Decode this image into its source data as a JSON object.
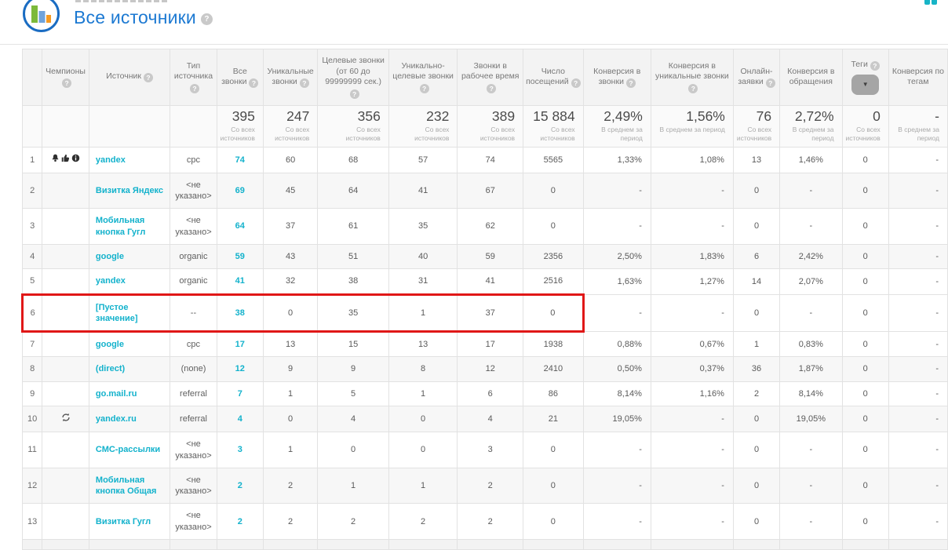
{
  "page": {
    "title": "Все источники"
  },
  "icons": {
    "help_glyph": "?",
    "dropdown_glyph": "▼",
    "logo": "bar-chart-icon",
    "top_right": "bookmark-icon",
    "champion_icons_row1": [
      "bell-icon",
      "thumb-up-icon",
      "info-icon"
    ],
    "champion_icons_row10": [
      "sync-icon"
    ]
  },
  "colors": {
    "title_blue": "#1c79d2",
    "link_teal": "#13b2cc",
    "highlight_red": "#e01717",
    "header_gray": "#f3f3f3"
  },
  "table": {
    "columns": [
      {
        "id": "row-number",
        "label": "",
        "help": false
      },
      {
        "id": "champions",
        "label": "Чемпионы",
        "help": true
      },
      {
        "id": "source",
        "label": "Источник",
        "help": true
      },
      {
        "id": "source-type",
        "label": "Тип источника",
        "help": true
      },
      {
        "id": "all-calls",
        "label": "Все звонки",
        "help": true
      },
      {
        "id": "unique-calls",
        "label": "Уникальные звонки",
        "help": true
      },
      {
        "id": "target-calls",
        "label": "Целевые звонки (от 60 до 99999999 сек.)",
        "help": true
      },
      {
        "id": "unique-target-calls",
        "label": "Уникально-целевые звонки",
        "help": true
      },
      {
        "id": "work-hours-calls",
        "label": "Звонки в рабочее время",
        "help": true
      },
      {
        "id": "visits",
        "label": "Число посещений",
        "help": true
      },
      {
        "id": "conversion-calls",
        "label": "Конверсия в звонки",
        "help": true
      },
      {
        "id": "conversion-unique-calls",
        "label": "Конверсия в уникальные звонки",
        "help": true
      },
      {
        "id": "online-requests",
        "label": "Онлайн-заявки",
        "help": true
      },
      {
        "id": "conversion-requests",
        "label": "Конверсия в обращения",
        "help": false
      },
      {
        "id": "tags",
        "label": "Теги",
        "help": true,
        "filter_button": true
      },
      {
        "id": "conversion-tags",
        "label": "Конверсия по тегам",
        "help": false
      }
    ],
    "summary": [
      null,
      null,
      null,
      null,
      {
        "value": "395",
        "caption": "Со всех источников"
      },
      {
        "value": "247",
        "caption": "Со всех источников"
      },
      {
        "value": "356",
        "caption": "Со всех источников"
      },
      {
        "value": "232",
        "caption": "Со всех источников"
      },
      {
        "value": "389",
        "caption": "Со всех источников"
      },
      {
        "value": "15 884",
        "caption": "Со всех источников"
      },
      {
        "value": "2,49%",
        "caption": "В среднем за период"
      },
      {
        "value": "1,56%",
        "caption": "В среднем за период"
      },
      {
        "value": "76",
        "caption": "Со всех источников"
      },
      {
        "value": "2,72%",
        "caption": "В среднем за период"
      },
      {
        "value": "0",
        "caption": "Со всех источников"
      },
      {
        "value": "-",
        "caption": "В среднем за период"
      }
    ],
    "rows": [
      {
        "num": "1",
        "icons": [
          "bell-icon",
          "thumb-up-icon",
          "info-icon"
        ],
        "source": "yandex",
        "type": "cpc",
        "values": [
          "74",
          "60",
          "68",
          "57",
          "74",
          "5565",
          "1,33%",
          "1,08%",
          "13",
          "1,46%",
          "0",
          "-"
        ],
        "highlighted": false
      },
      {
        "num": "2",
        "icons": [],
        "source": "Визитка Яндекс",
        "type": "<не указано>",
        "values": [
          "69",
          "45",
          "64",
          "41",
          "67",
          "0",
          "-",
          "-",
          "0",
          "-",
          "0",
          "-"
        ],
        "highlighted": false
      },
      {
        "num": "3",
        "icons": [],
        "source": "Мобильная кнопка Гугл",
        "type": "<не указано>",
        "values": [
          "64",
          "37",
          "61",
          "35",
          "62",
          "0",
          "-",
          "-",
          "0",
          "-",
          "0",
          "-"
        ],
        "highlighted": false
      },
      {
        "num": "4",
        "icons": [],
        "source": "google",
        "type": "organic",
        "values": [
          "59",
          "43",
          "51",
          "40",
          "59",
          "2356",
          "2,50%",
          "1,83%",
          "6",
          "2,42%",
          "0",
          "-"
        ],
        "highlighted": false
      },
      {
        "num": "5",
        "icons": [],
        "source": "yandex",
        "type": "organic",
        "values": [
          "41",
          "32",
          "38",
          "31",
          "41",
          "2516",
          "1,63%",
          "1,27%",
          "14",
          "2,07%",
          "0",
          "-"
        ],
        "highlighted": false
      },
      {
        "num": "6",
        "icons": [],
        "source": "[Пустое значение]",
        "type": "--",
        "values": [
          "38",
          "0",
          "35",
          "1",
          "37",
          "0",
          "-",
          "-",
          "0",
          "-",
          "0",
          "-"
        ],
        "highlighted": true
      },
      {
        "num": "7",
        "icons": [],
        "source": "google",
        "type": "cpc",
        "values": [
          "17",
          "13",
          "15",
          "13",
          "17",
          "1938",
          "0,88%",
          "0,67%",
          "1",
          "0,83%",
          "0",
          "-"
        ],
        "highlighted": false
      },
      {
        "num": "8",
        "icons": [],
        "source": "(direct)",
        "type": "(none)",
        "values": [
          "12",
          "9",
          "9",
          "8",
          "12",
          "2410",
          "0,50%",
          "0,37%",
          "36",
          "1,87%",
          "0",
          "-"
        ],
        "highlighted": false
      },
      {
        "num": "9",
        "icons": [],
        "source": "go.mail.ru",
        "type": "referral",
        "values": [
          "7",
          "1",
          "5",
          "1",
          "6",
          "86",
          "8,14%",
          "1,16%",
          "2",
          "8,14%",
          "0",
          "-"
        ],
        "highlighted": false
      },
      {
        "num": "10",
        "icons": [
          "sync-icon"
        ],
        "source": "yandex.ru",
        "type": "referral",
        "values": [
          "4",
          "0",
          "4",
          "0",
          "4",
          "21",
          "19,05%",
          "-",
          "0",
          "19,05%",
          "0",
          "-"
        ],
        "highlighted": false
      },
      {
        "num": "11",
        "icons": [],
        "source": "СМС-рассылки",
        "type": "<не указано>",
        "values": [
          "3",
          "1",
          "0",
          "0",
          "3",
          "0",
          "-",
          "-",
          "0",
          "-",
          "0",
          "-"
        ],
        "highlighted": false
      },
      {
        "num": "12",
        "icons": [],
        "source": "Мобильная кнопка Общая",
        "type": "<не указано>",
        "values": [
          "2",
          "2",
          "1",
          "1",
          "2",
          "0",
          "-",
          "-",
          "0",
          "-",
          "0",
          "-"
        ],
        "highlighted": false
      },
      {
        "num": "13",
        "icons": [],
        "source": "Визитка Гугл",
        "type": "<не указано>",
        "values": [
          "2",
          "2",
          "2",
          "2",
          "2",
          "0",
          "-",
          "-",
          "0",
          "-",
          "0",
          "-"
        ],
        "highlighted": false
      }
    ]
  }
}
